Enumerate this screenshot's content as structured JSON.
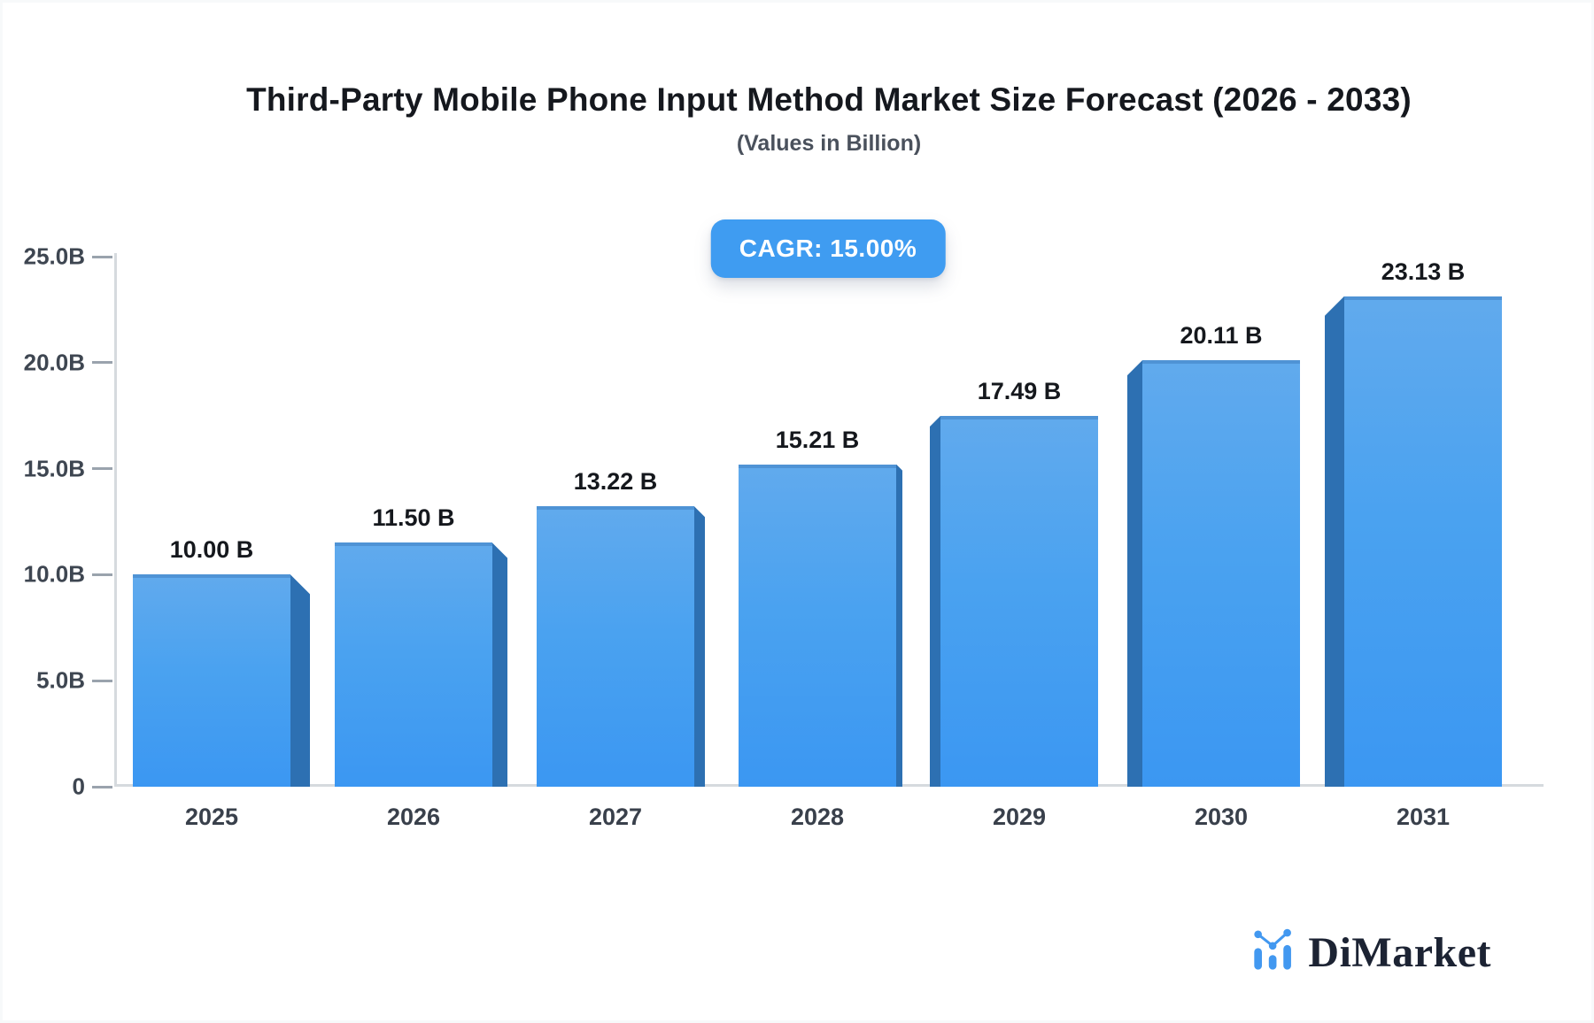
{
  "header": {
    "title": "Third-Party Mobile Phone Input Method Market Size Forecast (2026 - 2033)",
    "subtitle": "(Values in Billion)"
  },
  "badge": {
    "label": "CAGR: 15.00%",
    "color": "#3f9cf1"
  },
  "chart_data": {
    "type": "bar",
    "title": "Third-Party Mobile Phone Input Method Market Size Forecast (2026 - 2033)",
    "subtitle": "(Values in Billion)",
    "categories": [
      "2025",
      "2026",
      "2027",
      "2028",
      "2029",
      "2030",
      "2031"
    ],
    "values": [
      10.0,
      11.5,
      13.22,
      15.21,
      17.49,
      20.11,
      23.13
    ],
    "value_labels": [
      "10.00 B",
      "11.50 B",
      "13.22 B",
      "15.21 B",
      "17.49 B",
      "20.11 B",
      "23.13 B"
    ],
    "xlabel": "",
    "ylabel": "",
    "ylim": [
      0,
      25
    ],
    "y_ticks": [
      {
        "label": "25.0B",
        "value": 25
      },
      {
        "label": "20.0B",
        "value": 20
      },
      {
        "label": "15.0B",
        "value": 15
      },
      {
        "label": "10.0B",
        "value": 10
      },
      {
        "label": "5.0B",
        "value": 5
      },
      {
        "label": "0",
        "value": 0
      }
    ],
    "grid": false,
    "legend": false,
    "colors": {
      "bar_face_top": "#61aaed",
      "bar_face_bottom": "#3b97f2",
      "bar_side": "#2d70b2",
      "axis": "#d6dade",
      "tick": "#9aa3ad"
    }
  },
  "logo": {
    "text": "DiMarket",
    "icon": "bar-line-chart-icon",
    "text_color": "#1c2333",
    "accent_color": "#4298f0"
  }
}
